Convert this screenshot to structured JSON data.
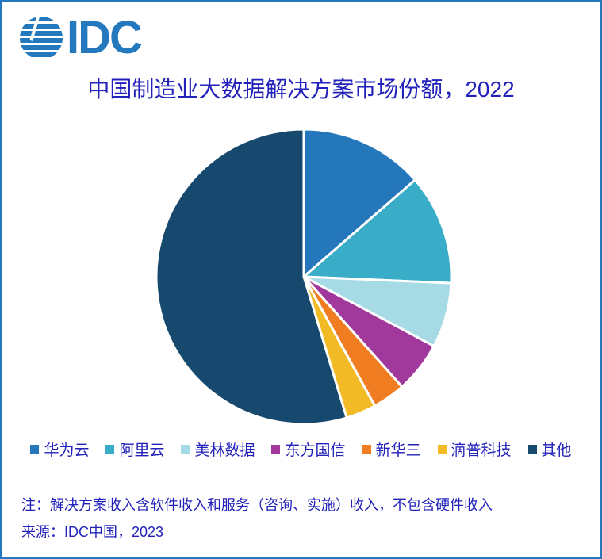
{
  "frame": {
    "border_color": "#2478BE",
    "background": "#FFFFFF"
  },
  "logo": {
    "text": "IDC",
    "color": "#2478BE"
  },
  "title": {
    "text": "中国制造业大数据解决方案市场份额，2022",
    "color": "#2222BB"
  },
  "chart_data": {
    "type": "pie",
    "title": "中国制造业大数据解决方案市场份额，2022",
    "start_angle_deg_from_12_oclock": 0,
    "direction": "clockwise",
    "separator_color": "#FFFFFF",
    "legend_position": "bottom",
    "series": [
      {
        "name": "华为云",
        "value": 13.6,
        "color": "#2577BC"
      },
      {
        "name": "阿里云",
        "value": 12.1,
        "color": "#39ADC7"
      },
      {
        "name": "美林数据",
        "value": 7.1,
        "color": "#A6DAE4"
      },
      {
        "name": "东方国信",
        "value": 5.6,
        "color": "#A0399B"
      },
      {
        "name": "新华三",
        "value": 3.6,
        "color": "#F07D21"
      },
      {
        "name": "滴普科技",
        "value": 3.3,
        "color": "#F2BB25"
      },
      {
        "name": "其他",
        "value": 54.7,
        "color": "#17496F"
      }
    ]
  },
  "notes": {
    "note": "注：解决方案收入含软件收入和服务（咨询、实施）收入，不包含硬件收入",
    "source": "来源：IDC中国，2023"
  }
}
